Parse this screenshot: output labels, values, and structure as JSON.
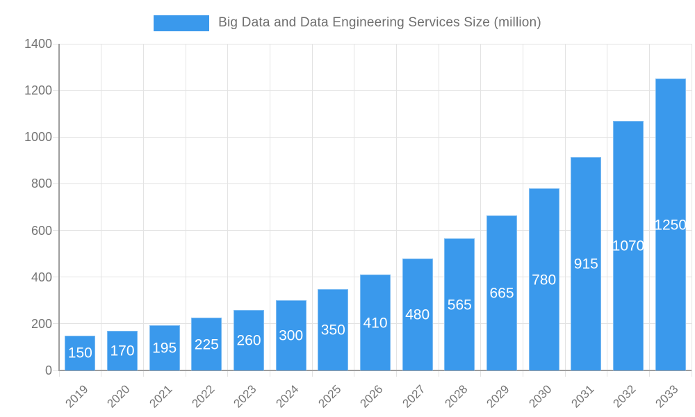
{
  "legend": {
    "label": "Big Data and Data Engineering Services Size (million)",
    "swatch_color": "#3a99ec"
  },
  "chart_data": {
    "type": "bar",
    "title": "Big Data and Data Engineering Services Size (million)",
    "categories": [
      "2019",
      "2020",
      "2021",
      "2022",
      "2023",
      "2024",
      "2025",
      "2026",
      "2027",
      "2028",
      "2029",
      "2030",
      "2031",
      "2032",
      "2033"
    ],
    "series": [
      {
        "name": "Big Data and Data Engineering Services Size (million)",
        "values": [
          150,
          170,
          195,
          225,
          260,
          300,
          350,
          410,
          480,
          565,
          665,
          780,
          915,
          1070,
          1250
        ]
      }
    ],
    "values": [
      150,
      170,
      195,
      225,
      260,
      300,
      350,
      410,
      480,
      565,
      665,
      780,
      915,
      1070,
      1250
    ],
    "value_labels": [
      "150",
      "170",
      "195",
      "225",
      "260",
      "300",
      "350",
      "410",
      "480",
      "565",
      "665",
      "780",
      "915",
      "1070",
      "1250"
    ],
    "xlabel": "",
    "ylabel": "",
    "ylim": [
      0,
      1400
    ],
    "ytick_step": 200,
    "yticks": [
      0,
      200,
      400,
      600,
      800,
      1000,
      1200,
      1400
    ],
    "grid": true,
    "legend_position": "top-center",
    "x_label_rotation": -45,
    "bar_color": "#3a99ec",
    "value_label_color": "#ffffff",
    "axis_color": "#9e9e9e",
    "grid_color": "#e3e3e3",
    "tick_label_color": "#757575"
  }
}
